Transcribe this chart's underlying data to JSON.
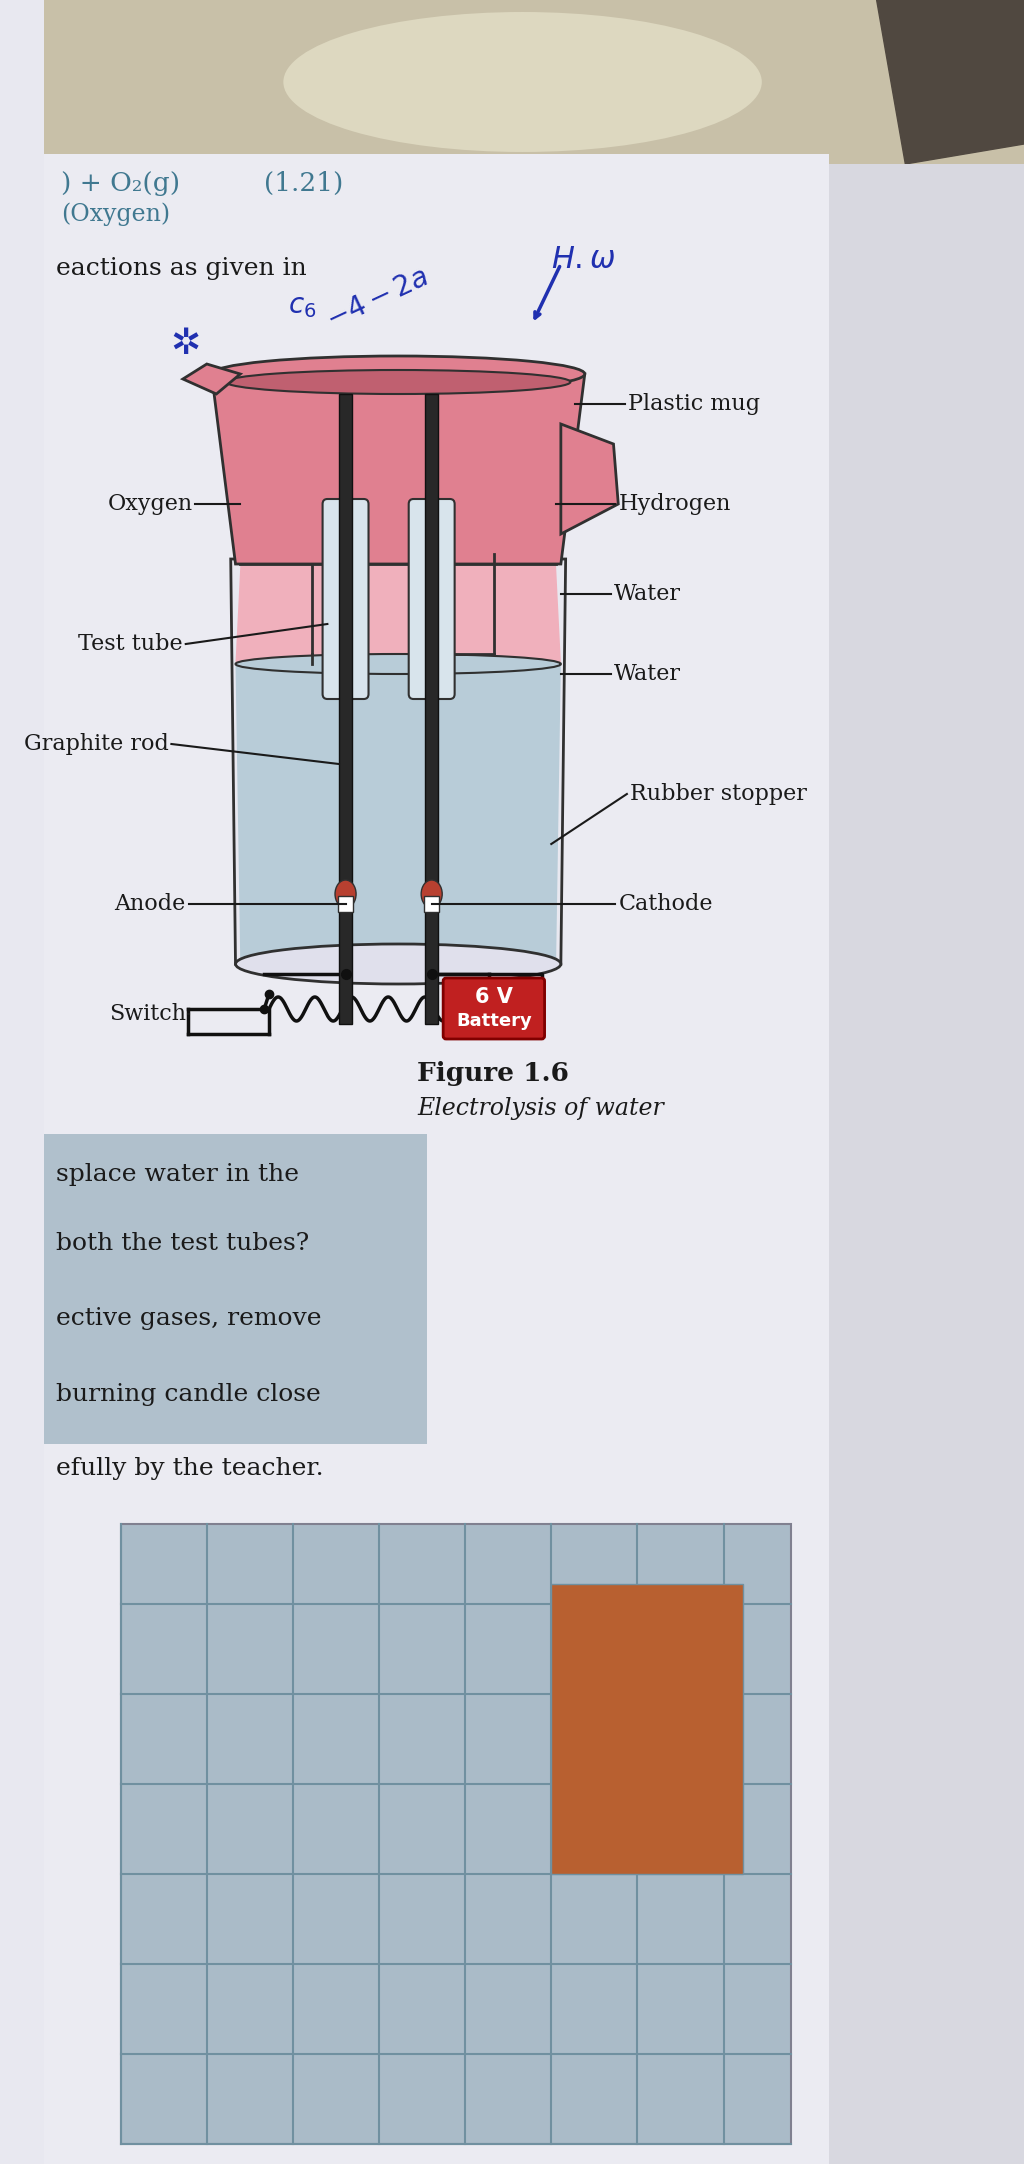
{
  "bg_top_color": "#c8c0a8",
  "bg_paper_color": "#e8e8f0",
  "shadow_color": "#707060",
  "pink_mug": "#e08090",
  "pink_light": "#f0b0b8",
  "pink_dark": "#c06070",
  "light_blue_water": "#b8ccd8",
  "graphite": "#303030",
  "rubber_red": "#b84030",
  "wire_color": "#101010",
  "battery_red": "#c02020",
  "text_teal": "#407890",
  "text_dark": "#1a1a1a",
  "blue_strip": "#b0c0cc",
  "label_fs": 16,
  "top_eq": ") + O₂(g)          (1.21)",
  "top_eq2": "(Oxygen)",
  "mid_text": "eactions as given in",
  "bottom_texts": [
    "splace water in the",
    "both the test tubes?",
    "ective gases, remove",
    "burning candle close",
    "efully by the teacher."
  ],
  "fig_title": "Figure 1.6",
  "fig_subtitle": "Electrolysis of water"
}
